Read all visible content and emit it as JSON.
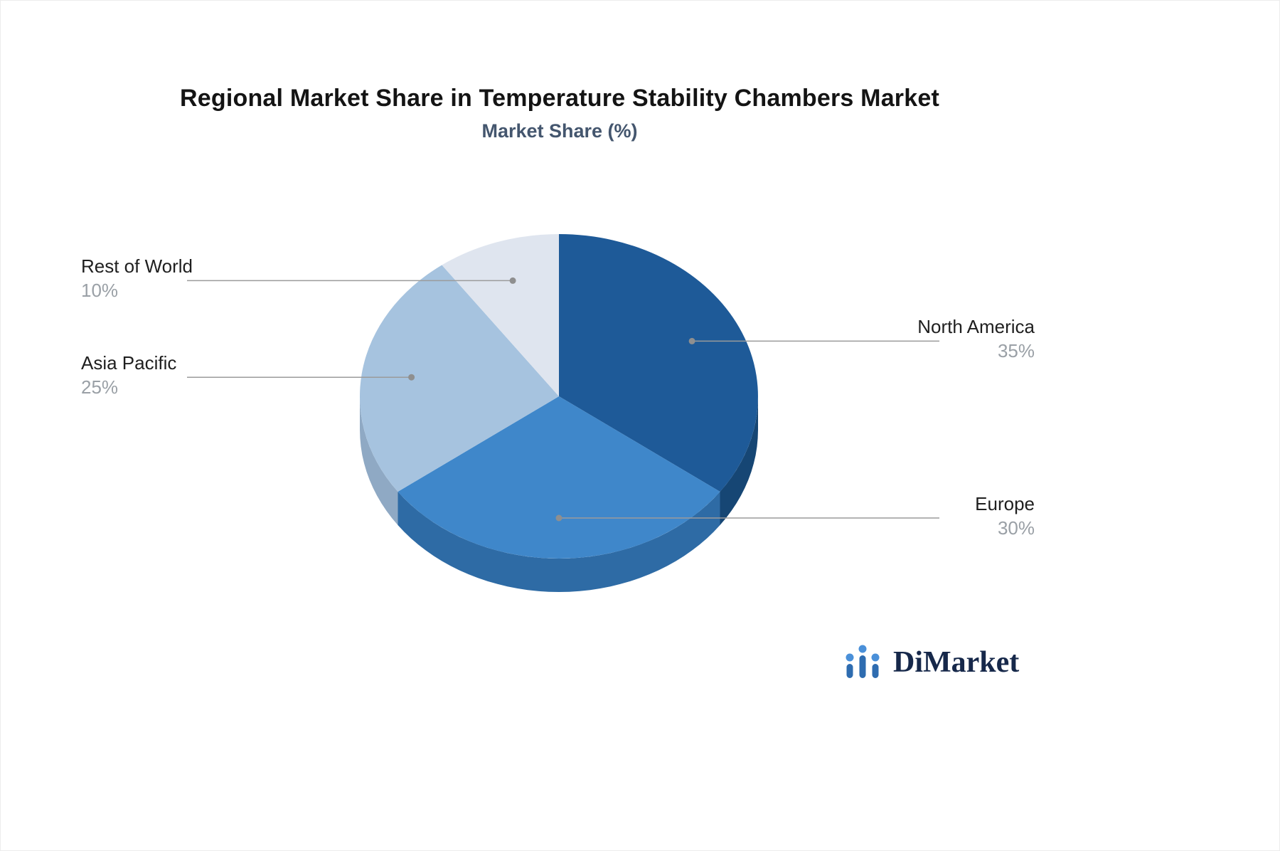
{
  "logo": {
    "text": "DiMarket",
    "icon": "bar-chart-icon"
  },
  "chart_data": {
    "type": "pie",
    "effect": "3d",
    "title": "Regional Market Share in Temperature Stability Chambers Market",
    "subtitle": "Market Share (%)",
    "unit": "%",
    "categories": [
      "North America",
      "Europe",
      "Asia Pacific",
      "Rest of World"
    ],
    "values": [
      35,
      30,
      25,
      10
    ],
    "pct_labels": [
      "35%",
      "30%",
      "25%",
      "10%"
    ],
    "colors": [
      "#1E5A98",
      "#3F87CA",
      "#A6C3DF",
      "#DFE5EF"
    ],
    "side_colors": [
      "#164674",
      "#2E6BA5",
      "#8FA9C4",
      "#C4CEDD"
    ],
    "start_angle_deg": 0,
    "direction": "clockwise",
    "label_line_color": "#9b9b9b",
    "label_dot_color": "#8f8f8f",
    "legend": "off",
    "background": "#ffffff"
  }
}
